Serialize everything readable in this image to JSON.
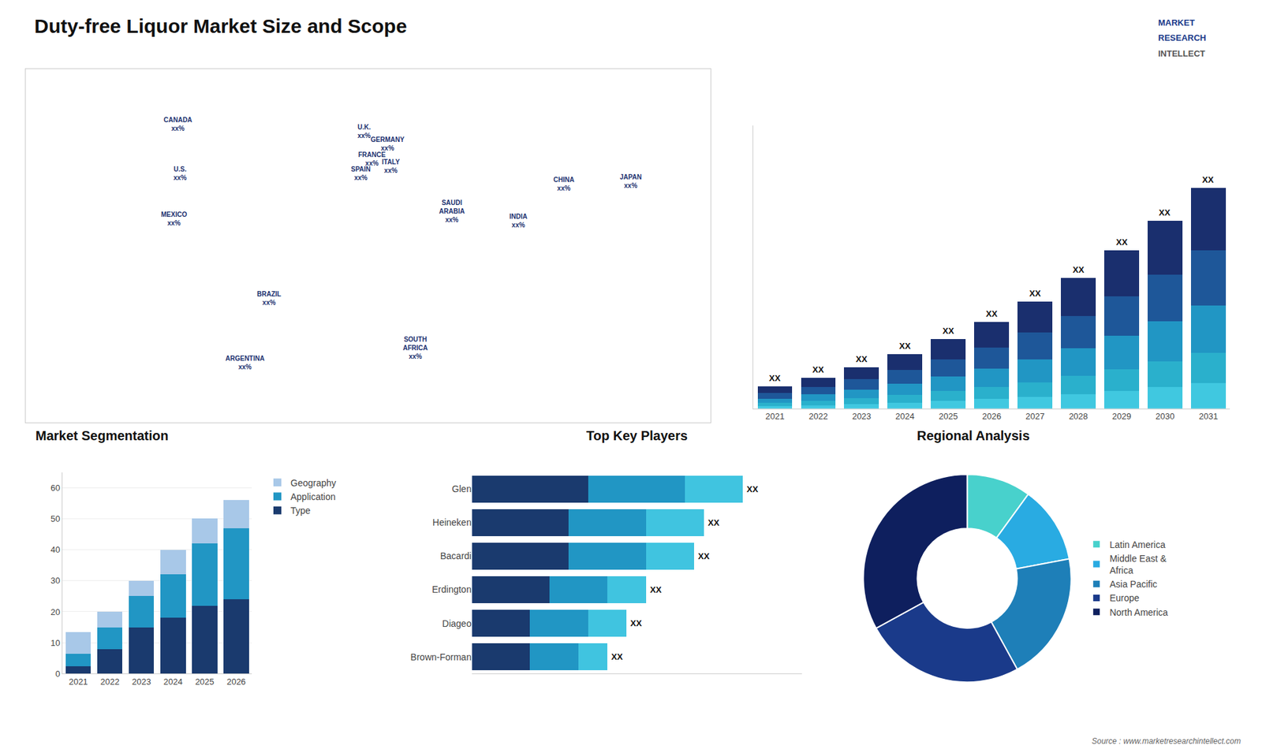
{
  "title": "Duty-free Liquor Market Size and Scope",
  "annotations": [
    "MARKET",
    "RESEARCH",
    "INTELLECT",
    "Source : www.marketresearchintellect.com"
  ],
  "chart_data": [
    {
      "type": "map",
      "xlim": [
        -180,
        180
      ],
      "ylim": [
        -60,
        82
      ],
      "tick_labels": false,
      "grid": false,
      "annotations": [
        {
          "text": "CANADA\nxx%",
          "x": -100,
          "y": 60
        },
        {
          "text": "U.S.\nxx%",
          "x": -99,
          "y": 40
        },
        {
          "text": "MEXICO\nxx%",
          "x": -102,
          "y": 22
        },
        {
          "text": "BRAZIL\nxx%",
          "x": -52,
          "y": -10
        },
        {
          "text": "ARGENTINA\nxx%",
          "x": -65,
          "y": -36
        },
        {
          "text": "U.K.\nxx%",
          "x": -2,
          "y": 57
        },
        {
          "text": "FRANCE\nxx%",
          "x": 2,
          "y": 46
        },
        {
          "text": "SPAIN\nxx%",
          "x": -4,
          "y": 40
        },
        {
          "text": "GERMANY\nxx%",
          "x": 10,
          "y": 52
        },
        {
          "text": "ITALY\nxx%",
          "x": 12,
          "y": 43
        },
        {
          "text": "CHINA\nxx%",
          "x": 103,
          "y": 36
        },
        {
          "text": "JAPAN\nxx%",
          "x": 138,
          "y": 37
        },
        {
          "text": "INDIA\nxx%",
          "x": 79,
          "y": 21
        },
        {
          "text": "SAUDI\nARABIA\nxx%",
          "x": 44,
          "y": 25
        },
        {
          "text": "SOUTH\nAFRICA\nxx%",
          "x": 25,
          "y": -30
        }
      ]
    },
    {
      "type": "bar",
      "stacked": true,
      "categories": [
        "2021",
        "2022",
        "2023",
        "2024",
        "2025",
        "2026",
        "2027",
        "2028",
        "2029",
        "2030",
        "2031"
      ],
      "series": [
        {
          "color": "#40c8e0",
          "values": [
            0.5,
            0.7,
            1.0,
            1.3,
            1.7,
            2.1,
            2.6,
            3.2,
            3.9,
            4.7,
            5.6
          ]
        },
        {
          "color": "#2ab0cc",
          "values": [
            0.7,
            1.0,
            1.3,
            1.7,
            2.1,
            2.6,
            3.2,
            3.9,
            4.7,
            5.6,
            6.6
          ]
        },
        {
          "color": "#2196c4",
          "values": [
            1.0,
            1.4,
            1.9,
            2.5,
            3.2,
            4.0,
            5.0,
            6.1,
            7.4,
            8.8,
            10.4
          ]
        },
        {
          "color": "#1e5799",
          "values": [
            1.2,
            1.6,
            2.2,
            2.9,
            3.7,
            4.7,
            5.8,
            7.1,
            8.6,
            10.2,
            12.0
          ]
        },
        {
          "color": "#1a2f6e",
          "values": [
            1.5,
            2.0,
            2.7,
            3.5,
            4.5,
            5.6,
            6.9,
            8.3,
            10.0,
            11.8,
            13.8
          ]
        }
      ],
      "ylim": [
        0,
        61.952
      ],
      "tick_labels": "x",
      "grid": false,
      "annotations": [
        "XX",
        "XX",
        "XX",
        "XX",
        "XX",
        "XX",
        "XX",
        "XX",
        "XX",
        "XX",
        "XX"
      ]
    },
    {
      "type": "bar",
      "title": "Market Segmentation",
      "stacked": true,
      "categories": [
        "2021",
        "2022",
        "2023",
        "2024",
        "2025",
        "2026"
      ],
      "series": [
        {
          "name": "Type",
          "color": "#1a3a6e",
          "values": [
            2.5,
            8.0,
            15.0,
            18.0,
            22.0,
            24.0
          ]
        },
        {
          "name": "Application",
          "color": "#2196c4",
          "values": [
            4.0,
            7.0,
            10.0,
            14.0,
            20.0,
            23.0
          ]
        },
        {
          "name": "Geography",
          "color": "#a8c8e8",
          "values": [
            7.0,
            5.0,
            5.0,
            8.0,
            8.0,
            9.0
          ]
        }
      ],
      "ylim": [
        0,
        65
      ],
      "yticks": [
        0,
        10,
        20,
        30,
        40,
        50,
        60
      ],
      "grid": true,
      "legend": "right"
    },
    {
      "type": "bar",
      "title": "Top Key Players",
      "orientation": "horizontal",
      "stacked": true,
      "categories": [
        "Glen",
        "Heineken",
        "Bacardi",
        "Erdington",
        "Diageo",
        "Brown-Forman"
      ],
      "series": [
        {
          "color": "#1a3a6e",
          "values": [
            6.0,
            5.0,
            5.0,
            4.0,
            3.0,
            3.0
          ]
        },
        {
          "color": "#2196c4",
          "values": [
            5.0,
            4.0,
            4.0,
            3.0,
            3.0,
            2.5
          ]
        },
        {
          "color": "#40c4e0",
          "values": [
            3.0,
            3.0,
            2.5,
            2.0,
            2.0,
            1.5
          ]
        }
      ],
      "xlim": [
        0,
        17.08
      ],
      "tick_labels": "y",
      "grid": false,
      "annotations": [
        "XX",
        "XX",
        "XX",
        "XX",
        "XX",
        "XX"
      ]
    },
    {
      "type": "pie",
      "title": "Regional Analysis",
      "categories": [
        "Latin America",
        "Middle East &\nAfrica",
        "Asia Pacific",
        "Europe",
        "North America"
      ],
      "values": [
        10,
        12,
        20,
        25,
        33
      ],
      "colors": [
        "#48d1cc",
        "#29abe2",
        "#1e7fb8",
        "#1a3a8a",
        "#0e1f5e"
      ],
      "legend": "right"
    }
  ]
}
